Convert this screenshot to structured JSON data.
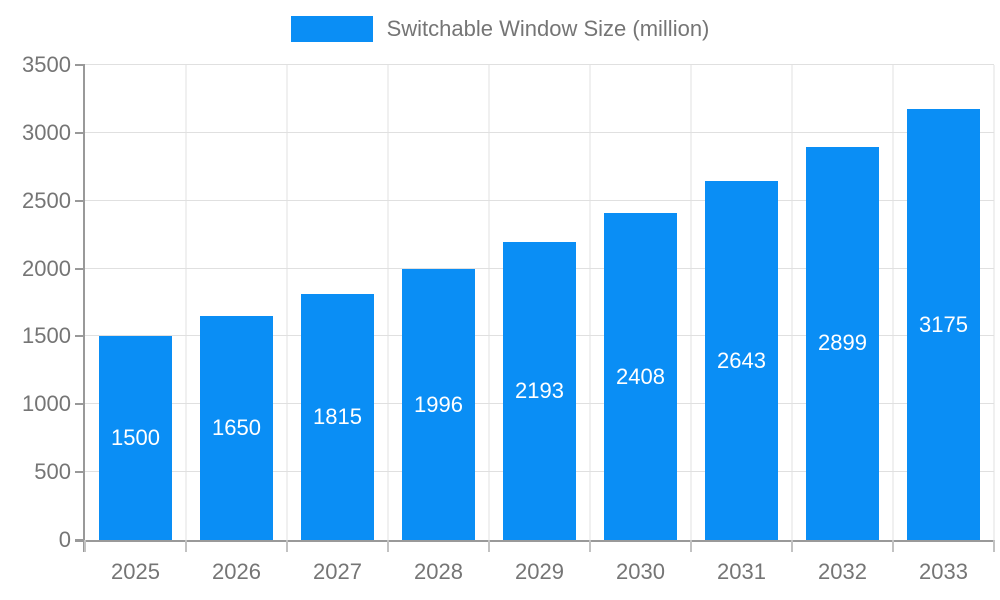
{
  "chart_data": {
    "type": "bar",
    "title": "Switchable Window Size (million)",
    "categories": [
      "2025",
      "2026",
      "2027",
      "2028",
      "2029",
      "2030",
      "2031",
      "2032",
      "2033"
    ],
    "values": [
      1500,
      1650,
      1815,
      1996,
      2193,
      2408,
      2643,
      2899,
      3175
    ],
    "xlabel": "",
    "ylabel": "",
    "ylim": [
      0,
      3500
    ],
    "yticks": [
      0,
      500,
      1000,
      1500,
      2000,
      2500,
      3000,
      3500
    ],
    "grid": true,
    "legend_position": "top-center",
    "colors": {
      "bar": "#0a8ef5",
      "value_label": "#ffffff",
      "axis": "#999999",
      "gridline": "#e0e0e0",
      "tick_label": "#757575"
    }
  }
}
